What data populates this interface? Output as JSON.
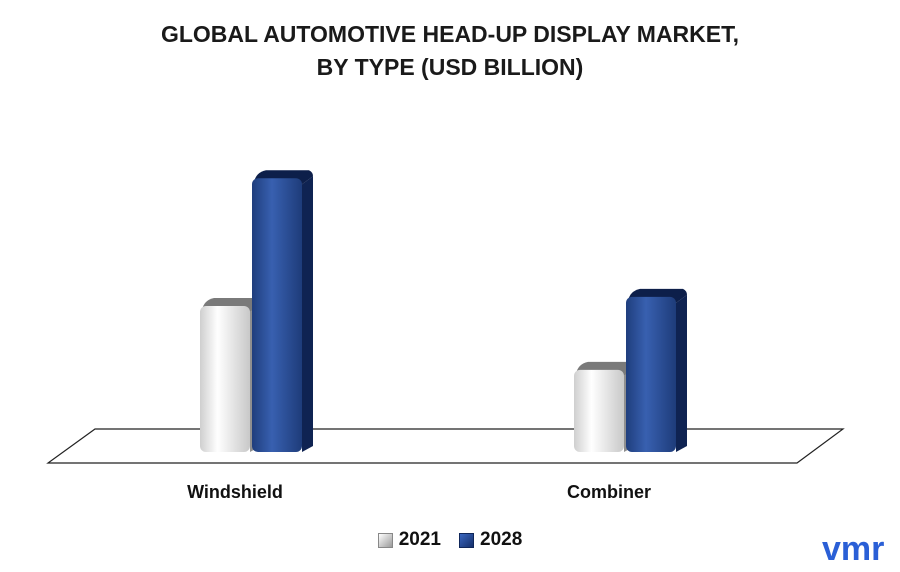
{
  "chart_data": {
    "type": "bar",
    "title_lines": [
      "GLOBAL AUTOMOTIVE HEAD-UP DISPLAY MARKET,",
      "BY TYPE (USD BILLION)"
    ],
    "categories": [
      "Windshield",
      "Combiner"
    ],
    "series": [
      {
        "name": "2021",
        "values": [
          1.6,
          0.9
        ]
      },
      {
        "name": "2028",
        "values": [
          3.0,
          1.7
        ]
      }
    ],
    "ylim": [
      0,
      3.2
    ],
    "grid": false,
    "legend_position": "bottom-center"
  },
  "colors": {
    "2021": "#eeeeee",
    "2028": "#2a4f97"
  },
  "logo": {
    "text": "vmr",
    "color": "#2a5fd6"
  }
}
